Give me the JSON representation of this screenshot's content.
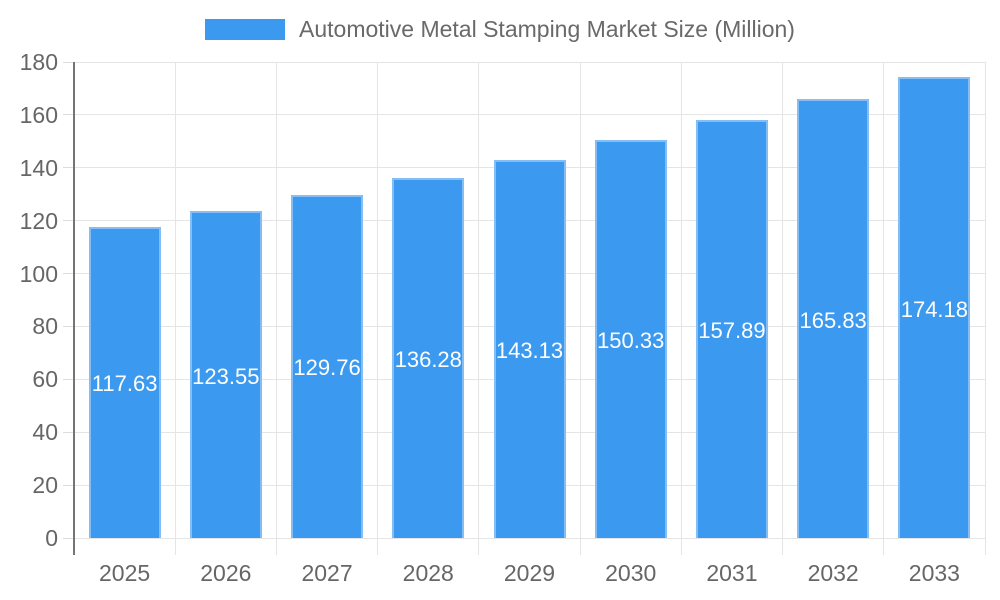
{
  "legend": {
    "label": "Automotive Metal Stamping Market Size (Million)"
  },
  "chart_data": {
    "type": "bar",
    "title": "Automotive Metal Stamping Market Size (Million)",
    "categories": [
      "2025",
      "2026",
      "2027",
      "2028",
      "2029",
      "2030",
      "2031",
      "2032",
      "2033"
    ],
    "values": [
      117.63,
      123.55,
      129.76,
      136.28,
      143.13,
      150.33,
      157.89,
      165.83,
      174.18
    ],
    "series": [
      {
        "name": "Automotive Metal Stamping Market Size (Million)",
        "values": [
          117.63,
          123.55,
          129.76,
          136.28,
          143.13,
          150.33,
          157.89,
          165.83,
          174.18
        ]
      }
    ],
    "xlabel": "",
    "ylabel": "",
    "ylim": [
      0,
      180
    ],
    "ytick_step": 20,
    "grid": true,
    "legend_position": "top",
    "value_labels": "inside-center",
    "colors": {
      "bar_fill": "#3B99F0",
      "bar_border": "#85BEF4",
      "grid": "#E5E5E5",
      "axis_line": "#757575",
      "text": "#666666",
      "value_text": "#FFFFFF"
    }
  }
}
